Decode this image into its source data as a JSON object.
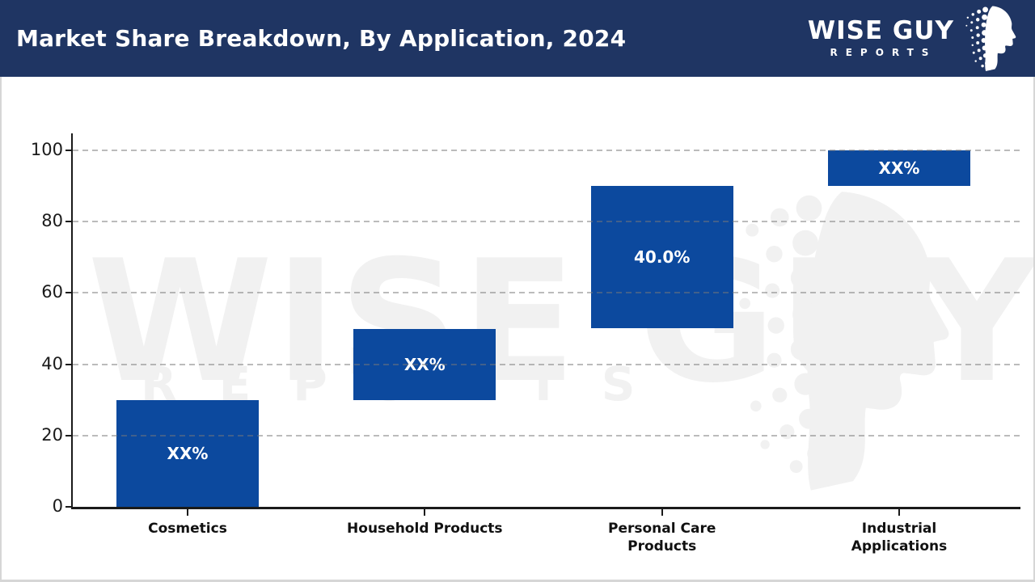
{
  "header": {
    "title": "Market Share Breakdown, By Application, 2024",
    "bg_color": "#1f3563",
    "logo": {
      "wordmark": "WISE GUY",
      "subtext": "REPORTS"
    }
  },
  "watermark": {
    "wordmark": "WISE GUY",
    "subtext": "REPORTS"
  },
  "chart_data": {
    "type": "bar",
    "variant": "floating-range-bars",
    "title": "Market Share Breakdown, By Application, 2024",
    "categories": [
      "Cosmetics",
      "Household Products",
      "Personal Care\nProducts",
      "Industrial\nApplications"
    ],
    "series": [
      {
        "name": "Market share (%)",
        "ranges": [
          [
            0,
            30
          ],
          [
            30,
            50
          ],
          [
            50,
            90
          ],
          [
            90,
            100
          ]
        ],
        "value_labels": [
          "XX%",
          "XX%",
          "40.0%",
          "XX%"
        ]
      }
    ],
    "xlabel": "",
    "ylabel": "",
    "ylim": [
      0,
      105
    ],
    "yticks": [
      0,
      20,
      40,
      60,
      80,
      100
    ],
    "grid": {
      "horizontal": true,
      "style": "dashed",
      "above_bars": true
    },
    "legend": "none",
    "colors": {
      "bar": "#0c499e",
      "bar_label_text": "#ffffff",
      "axis": "#1a1a1a",
      "grid": "#9a9a9a"
    }
  }
}
